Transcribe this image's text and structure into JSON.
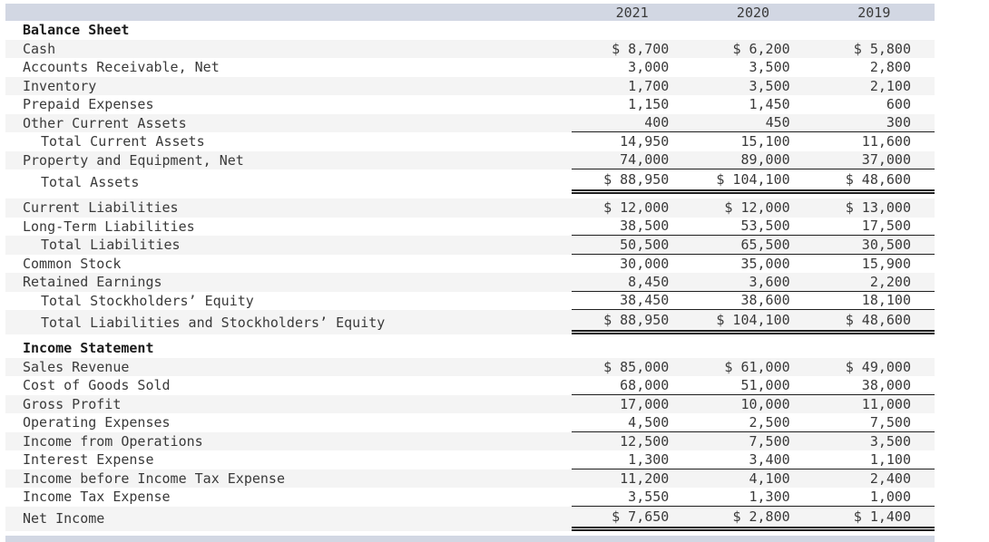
{
  "columns": [
    "2021",
    "2020",
    "2019"
  ],
  "colors": {
    "header_band": "#d2d7e3",
    "row_stripe": "#f4f4f4",
    "rule": "#1f1f1f",
    "text": "#3a3a3a",
    "heading_text": "#1a1a1a"
  },
  "rows": [
    {
      "label": "Balance Sheet",
      "header": true
    },
    {
      "label": "Cash",
      "values": [
        "$ 8,700",
        "$ 6,200",
        "$ 5,800"
      ],
      "shaded": true
    },
    {
      "label": "Accounts Receivable, Net",
      "values": [
        "3,000",
        "3,500",
        "2,800"
      ]
    },
    {
      "label": "Inventory",
      "values": [
        "1,700",
        "3,500",
        "2,100"
      ],
      "shaded": true
    },
    {
      "label": "Prepaid Expenses",
      "values": [
        "1,150",
        "1,450",
        "600"
      ]
    },
    {
      "label": "Other Current Assets",
      "values": [
        "400",
        "450",
        "300"
      ],
      "shaded": true,
      "underline": "single"
    },
    {
      "label": "Total Current Assets",
      "values": [
        "14,950",
        "15,100",
        "11,600"
      ],
      "indent": true
    },
    {
      "label": "Property and Equipment, Net",
      "values": [
        "74,000",
        "89,000",
        "37,000"
      ],
      "shaded": true,
      "underline": "single"
    },
    {
      "label": "Total Assets",
      "values": [
        "$ 88,950",
        "$ 104,100",
        "$ 48,600"
      ],
      "indent": true,
      "tall": true,
      "underline": "double"
    },
    {
      "label": "Current Liabilities",
      "values": [
        "$ 12,000",
        "$ 12,000",
        "$ 13,000"
      ],
      "shaded": true
    },
    {
      "label": "Long-Term Liabilities",
      "values": [
        "38,500",
        "53,500",
        "17,500"
      ],
      "underline": "single"
    },
    {
      "label": "Total Liabilities",
      "values": [
        "50,500",
        "65,500",
        "30,500"
      ],
      "indent": true,
      "shaded": true,
      "underline": "single"
    },
    {
      "label": "Common Stock",
      "values": [
        "30,000",
        "35,000",
        "15,900"
      ]
    },
    {
      "label": "Retained Earnings",
      "values": [
        "8,450",
        "3,600",
        "2,200"
      ],
      "shaded": true,
      "underline": "single"
    },
    {
      "label": "Total Stockholders’ Equity",
      "values": [
        "38,450",
        "38,600",
        "18,100"
      ],
      "indent": true,
      "underline": "single"
    },
    {
      "label": "Total Liabilities and Stockholders’ Equity",
      "values": [
        "$ 88,950",
        "$ 104,100",
        "$ 48,600"
      ],
      "indent": true,
      "shaded": true,
      "tall": true,
      "underline": "double"
    },
    {
      "label": "Income Statement",
      "header": true
    },
    {
      "label": "Sales Revenue",
      "values": [
        "$ 85,000",
        "$ 61,000",
        "$ 49,000"
      ],
      "shaded": true
    },
    {
      "label": "Cost of Goods Sold",
      "values": [
        "68,000",
        "51,000",
        "38,000"
      ],
      "underline": "single"
    },
    {
      "label": "Gross Profit",
      "values": [
        "17,000",
        "10,000",
        "11,000"
      ],
      "shaded": true
    },
    {
      "label": "Operating Expenses",
      "values": [
        "4,500",
        "2,500",
        "7,500"
      ],
      "underline": "single"
    },
    {
      "label": "Income from Operations",
      "values": [
        "12,500",
        "7,500",
        "3,500"
      ],
      "shaded": true
    },
    {
      "label": "Interest Expense",
      "values": [
        "1,300",
        "3,400",
        "1,100"
      ],
      "underline": "single"
    },
    {
      "label": "Income before Income Tax Expense",
      "values": [
        "11,200",
        "4,100",
        "2,400"
      ],
      "shaded": true
    },
    {
      "label": "Income Tax Expense",
      "values": [
        "3,550",
        "1,300",
        "1,000"
      ],
      "underline": "single"
    },
    {
      "label": "Net Income",
      "values": [
        "$ 7,650",
        "$ 2,800",
        "$ 1,400"
      ],
      "shaded": true,
      "tall": true,
      "underline": "double"
    }
  ]
}
